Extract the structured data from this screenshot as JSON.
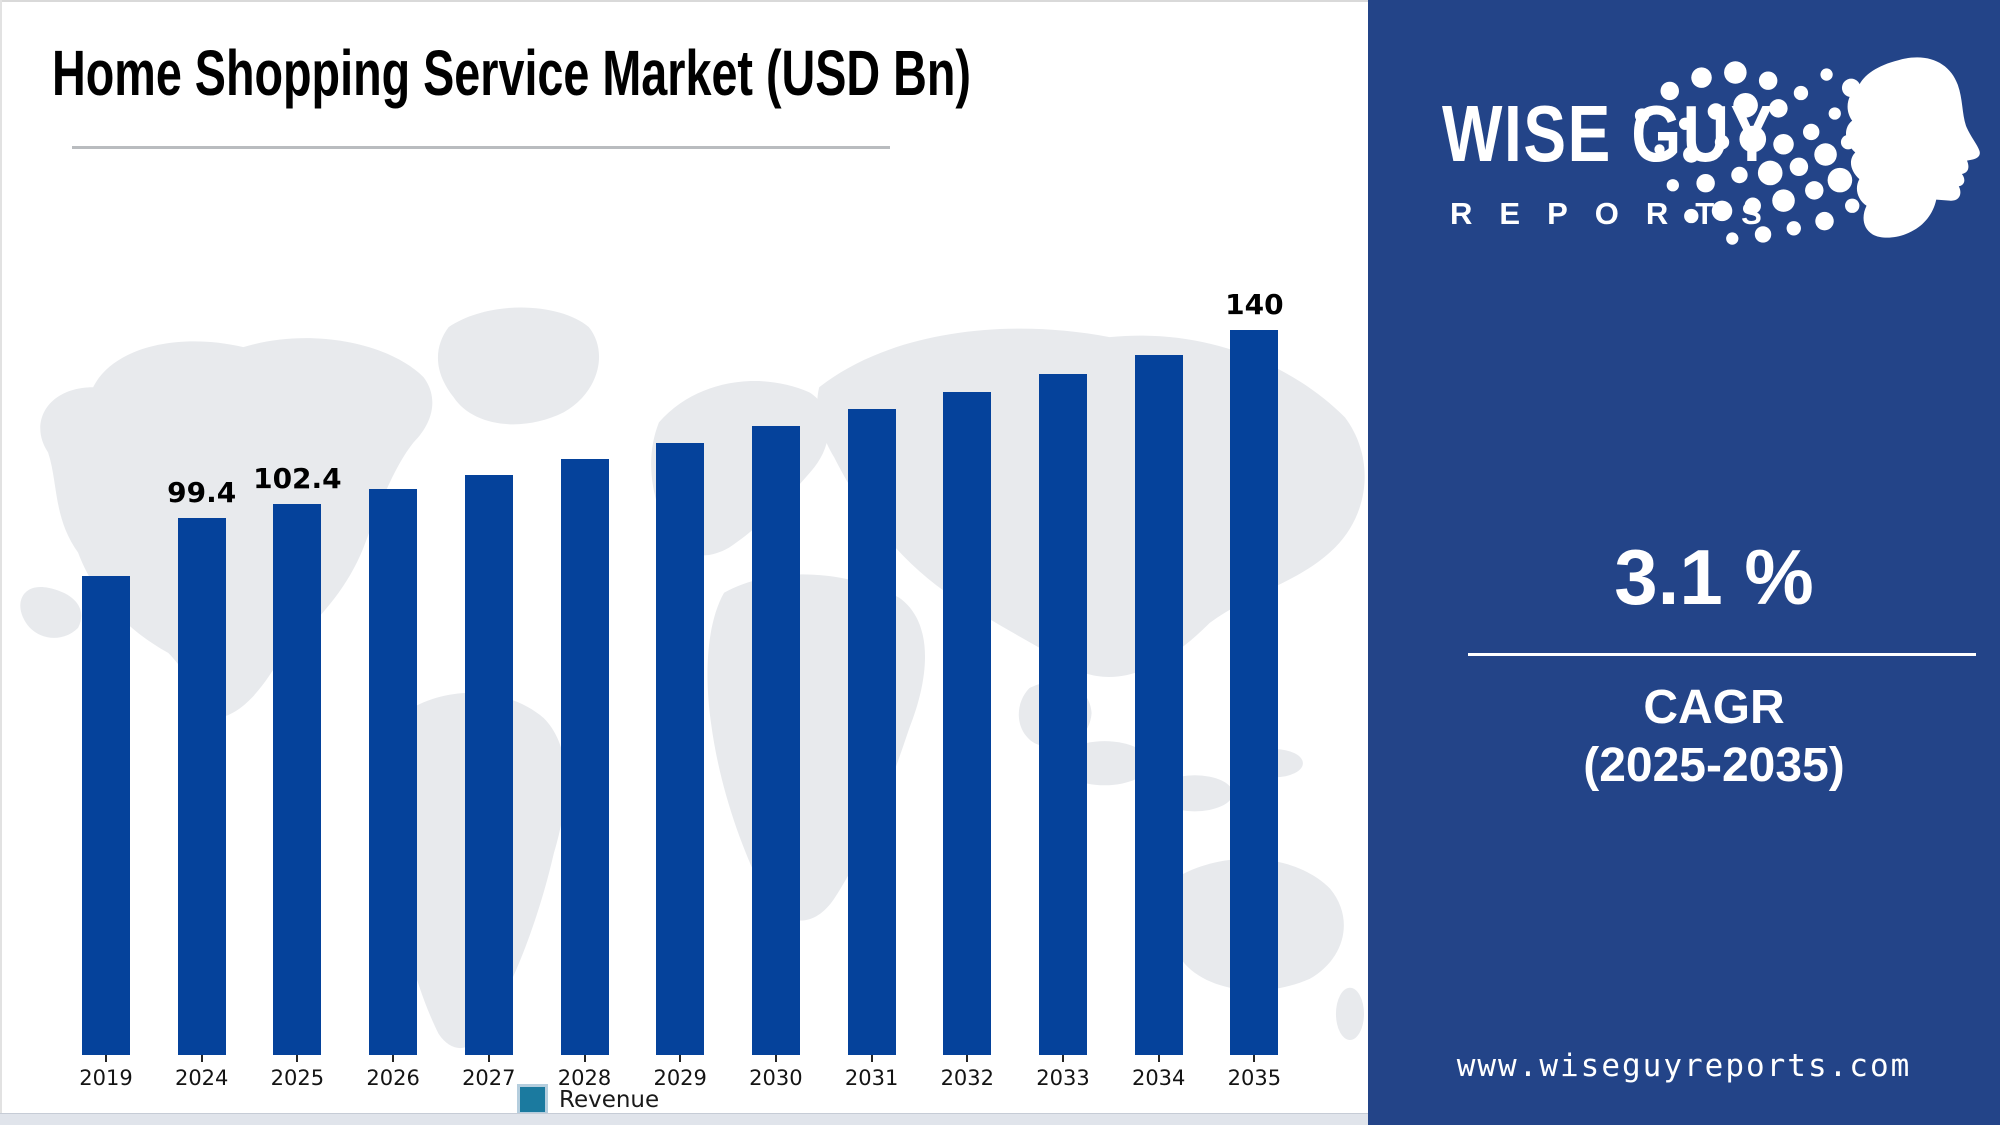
{
  "title": "Home Shopping Service Market (USD Bn)",
  "chart_data": {
    "type": "bar",
    "title": "Home Shopping Service Market (USD Bn)",
    "categories": [
      "2019",
      "2024",
      "2025",
      "2026",
      "2027",
      "2028",
      "2029",
      "2030",
      "2031",
      "2032",
      "2033",
      "2034",
      "2035"
    ],
    "series": [
      {
        "name": "Revenue",
        "values": [
          87,
          99.4,
          102.4,
          105.6,
          108.8,
          112.2,
          115.6,
          119.2,
          122.9,
          126.7,
          130.6,
          134.7,
          140
        ]
      }
    ],
    "value_labels": {
      "2024": "99.4",
      "2025": "102.4",
      "2035": "140"
    },
    "xlabel": "",
    "ylabel": "",
    "grid": false,
    "y_axis_shown": false,
    "legend": {
      "position": "bottom",
      "entries": [
        "Revenue"
      ]
    },
    "bar_color": "#05429b",
    "legend_marker_color": "#1b7a9f",
    "tick_color": "#262626",
    "map_watermark_color": "#e8eaed"
  },
  "panel": {
    "background": "#234488",
    "logo": {
      "line1": "WISE GUY",
      "line2": "REPORTS"
    },
    "cagr": {
      "value": "3.1 %",
      "label": "CAGR",
      "period": "(2025-2035)"
    },
    "website": "www.wiseguyreports.com",
    "text_color": "#ffffff"
  }
}
